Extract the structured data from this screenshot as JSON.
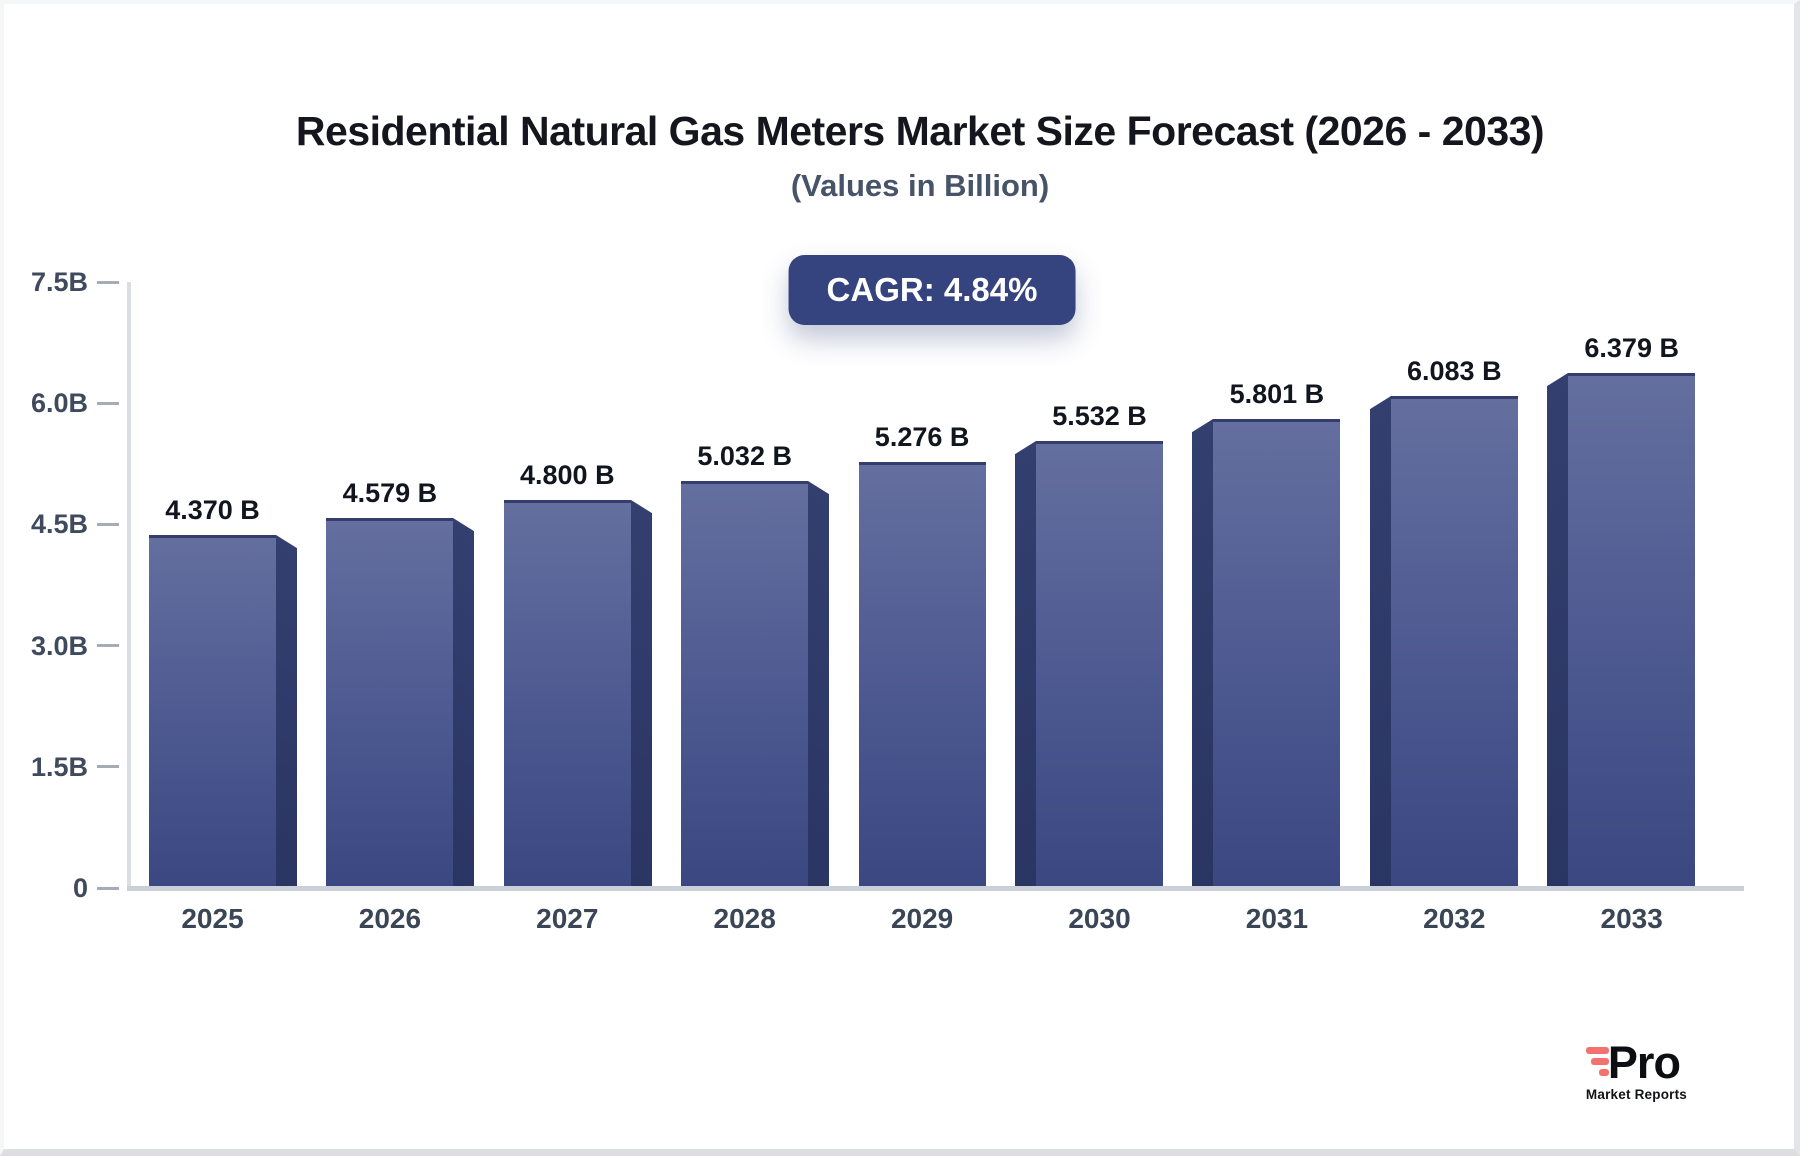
{
  "header": {
    "title": "Residential Natural Gas Meters Market Size Forecast (2026 - 2033)",
    "subtitle": "(Values in Billion)",
    "cagr_label": "CAGR: 4.84%"
  },
  "chart_data": {
    "type": "bar",
    "title": "Residential Natural Gas Meters Market Size Forecast (2026 - 2033)",
    "subtitle": "(Values in Billion)",
    "cagr_percent": "4.84%",
    "unit": "Billion",
    "categories": [
      "2025",
      "2026",
      "2027",
      "2028",
      "2029",
      "2030",
      "2031",
      "2032",
      "2033"
    ],
    "values": [
      4.37,
      4.579,
      4.8,
      5.032,
      5.276,
      5.532,
      5.801,
      6.083,
      6.379
    ],
    "value_labels": [
      "4.370 B",
      "4.579 B",
      "4.800 B",
      "5.032 B",
      "5.276 B",
      "5.532 B",
      "5.801 B",
      "6.083 B",
      "6.379 B"
    ],
    "y_ticks": [
      {
        "label": "7.5B",
        "value": 7.5
      },
      {
        "label": "6.0B",
        "value": 6.0
      },
      {
        "label": "4.5B",
        "value": 4.5
      },
      {
        "label": "3.0B",
        "value": 3.0
      },
      {
        "label": "1.5B",
        "value": 1.5
      },
      {
        "label": "0",
        "value": 0
      }
    ],
    "ylim": [
      0,
      7.5
    ],
    "grid": false,
    "legend": false,
    "bar_style": "3d-perspective"
  },
  "colors": {
    "bar_gradient_top": "#646f9f",
    "bar_gradient_bottom": "#3b4780",
    "bar_side_face": "#2e3a69",
    "badge_background": "#35447e",
    "badge_text": "#ffffff",
    "axis_line": "#cbd0d8",
    "title_text": "#15161d",
    "subtitle_text": "#475369",
    "logo_accent": "#f3716e"
  },
  "logo": {
    "brand": "Pro",
    "tagline": "Market Reports"
  }
}
